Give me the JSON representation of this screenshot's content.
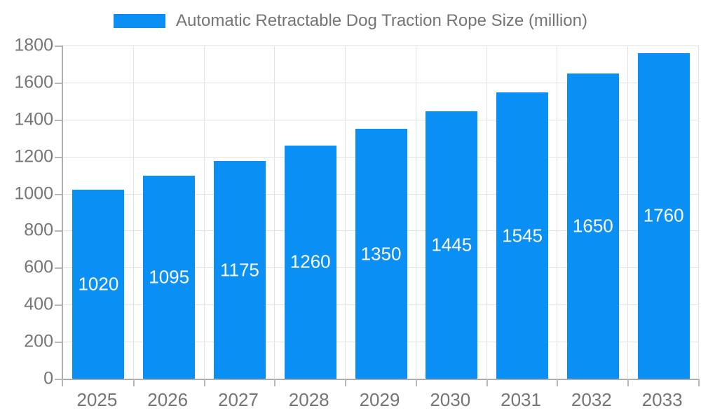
{
  "legend": {
    "swatch_color": "#0a90f5"
  },
  "chart_data": {
    "type": "bar",
    "title": "Automatic Retractable Dog Traction Rope Size (million)",
    "categories": [
      "2025",
      "2026",
      "2027",
      "2028",
      "2029",
      "2030",
      "2031",
      "2032",
      "2033"
    ],
    "values": [
      1020,
      1095,
      1175,
      1260,
      1350,
      1445,
      1545,
      1650,
      1760
    ],
    "value_labels": [
      "1020",
      "1095",
      "1175",
      "1260",
      "1350",
      "1445",
      "1545",
      "1650",
      "1760"
    ],
    "xlabel": "",
    "ylabel": "",
    "ylim": [
      0,
      1800
    ],
    "y_ticks": [
      0,
      200,
      400,
      600,
      800,
      1000,
      1200,
      1400,
      1600,
      1800
    ],
    "grid": true,
    "legend_position": "top-center",
    "bar_color": "#0a90f5",
    "value_label_color": "#ffffff",
    "axis_text_color": "#757575",
    "gridline_color": "#e2e2e2",
    "axis_line_color": "#adadad"
  }
}
